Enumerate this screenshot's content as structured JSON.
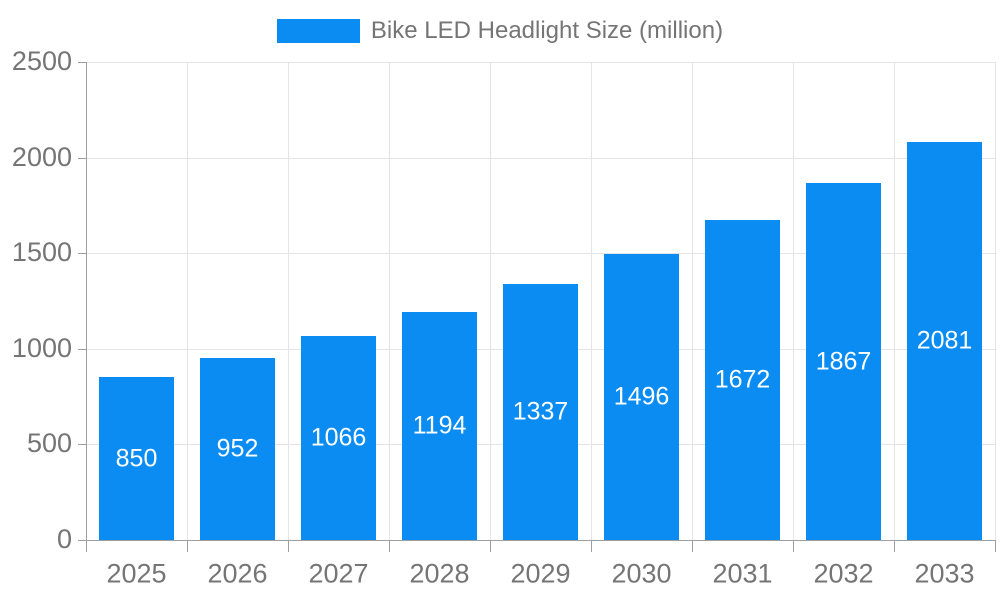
{
  "chart_data": {
    "type": "bar",
    "title": "Bike LED Headlight Size (million)",
    "legend_label": "Bike LED Headlight Size (million)",
    "legend_position": "top-center",
    "categories": [
      "2025",
      "2026",
      "2027",
      "2028",
      "2029",
      "2030",
      "2031",
      "2032",
      "2033"
    ],
    "values": [
      850,
      952,
      1066,
      1194,
      1337,
      1496,
      1672,
      1867,
      2081
    ],
    "series": [
      {
        "name": "Bike LED Headlight Size (million)",
        "values": [
          850,
          952,
          1066,
          1194,
          1337,
          1496,
          1672,
          1867,
          2081
        ]
      }
    ],
    "xlabel": "",
    "ylabel": "",
    "ylim": [
      0,
      2500
    ],
    "yticks": [
      0,
      500,
      1000,
      1500,
      2000,
      2500
    ],
    "grid": true,
    "value_labels": "inside-center-white",
    "colors": {
      "bar": "#0b8cf3",
      "value_label_text": "#ffffff",
      "axis_text": "#757575",
      "legend_text": "#757575",
      "gridline": "#e4e4e4",
      "axis_line": "#9e9e9e",
      "background": "#ffffff"
    }
  }
}
